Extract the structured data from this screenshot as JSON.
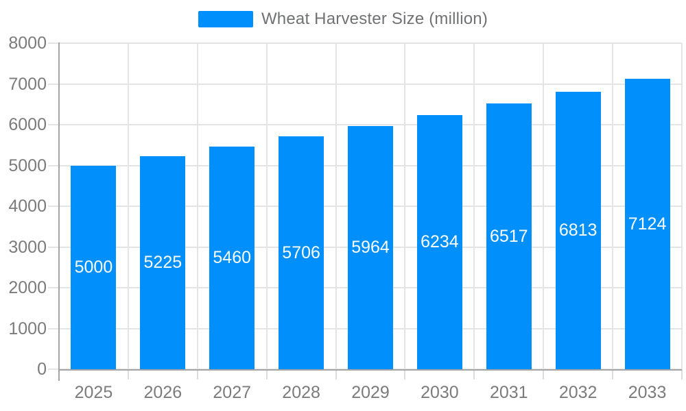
{
  "legend": {
    "label": "Wheat Harvester Size (million)",
    "marker_color": "#008FFB"
  },
  "chart_data": {
    "type": "bar",
    "title": "Wheat Harvester Size (million)",
    "categories": [
      "2025",
      "2026",
      "2027",
      "2028",
      "2029",
      "2030",
      "2031",
      "2032",
      "2033"
    ],
    "series": [
      {
        "name": "Wheat Harvester Size (million)",
        "values": [
          5000,
          5225,
          5460,
          5706,
          5964,
          6234,
          6517,
          6813,
          7124
        ]
      }
    ],
    "xlabel": "",
    "ylabel": "",
    "ylim": [
      0,
      8000
    ],
    "yticks": [
      0,
      1000,
      2000,
      3000,
      4000,
      5000,
      6000,
      7000,
      8000
    ],
    "grid": true,
    "legend_position": "top",
    "bar_color": "#008FFB",
    "value_label_color": "#ffffff",
    "axis_label_color": "#7b7b7b",
    "gridline_color": "#e4e4e4",
    "axis_line_color": "#a4a4a4"
  }
}
